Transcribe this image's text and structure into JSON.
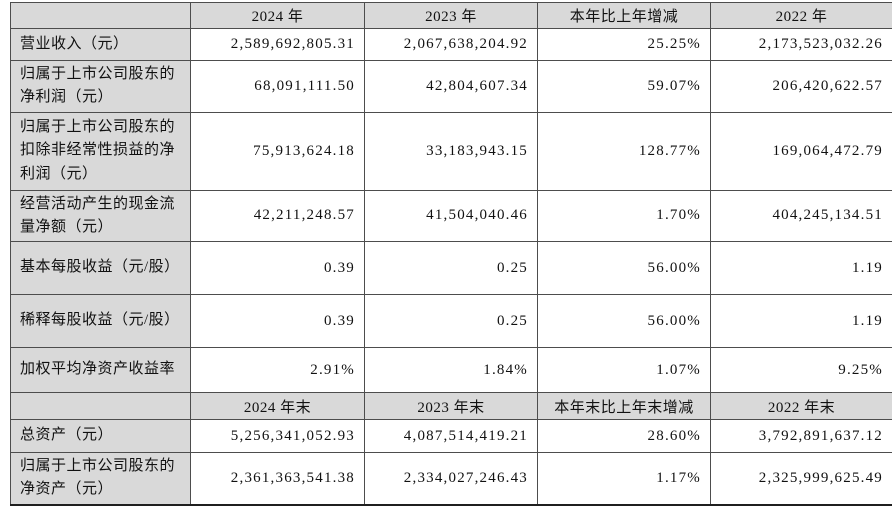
{
  "table": {
    "header1": [
      "2024 年",
      "2023 年",
      "本年比上年增减",
      "2022 年"
    ],
    "rows1": [
      {
        "label": "营业收入（元）",
        "values": [
          "2,589,692,805.31",
          "2,067,638,204.92",
          "25.25%",
          "2,173,523,032.26"
        ]
      },
      {
        "label": "归属于上市公司股东的净利润（元）",
        "values": [
          "68,091,111.50",
          "42,804,607.34",
          "59.07%",
          "206,420,622.57"
        ]
      },
      {
        "label": "归属于上市公司股东的扣除非经常性损益的净利润（元）",
        "values": [
          "75,913,624.18",
          "33,183,943.15",
          "128.77%",
          "169,064,472.79"
        ]
      },
      {
        "label": "经营活动产生的现金流量净额（元）",
        "values": [
          "42,211,248.57",
          "41,504,040.46",
          "1.70%",
          "404,245,134.51"
        ]
      },
      {
        "label": "基本每股收益（元/股）",
        "values": [
          "0.39",
          "0.25",
          "56.00%",
          "1.19"
        ]
      },
      {
        "label": "稀释每股收益（元/股）",
        "values": [
          "0.39",
          "0.25",
          "56.00%",
          "1.19"
        ]
      },
      {
        "label": "加权平均净资产收益率",
        "values": [
          "2.91%",
          "1.84%",
          "1.07%",
          "9.25%"
        ]
      }
    ],
    "header2": [
      "2024 年末",
      "2023 年末",
      "本年末比上年末增减",
      "2022 年末"
    ],
    "rows2": [
      {
        "label": "总资产（元）",
        "values": [
          "5,256,341,052.93",
          "4,087,514,419.21",
          "28.60%",
          "3,792,891,637.12"
        ]
      },
      {
        "label": "归属于上市公司股东的净资产（元）",
        "values": [
          "2,361,363,541.38",
          "2,334,027,246.43",
          "1.17%",
          "2,325,999,625.49"
        ]
      }
    ],
    "colors": {
      "header_bg": "#d9d9d9",
      "label_bg": "#d9d9d9",
      "cell_bg": "#ffffff",
      "border": "#4d4d4d"
    }
  }
}
